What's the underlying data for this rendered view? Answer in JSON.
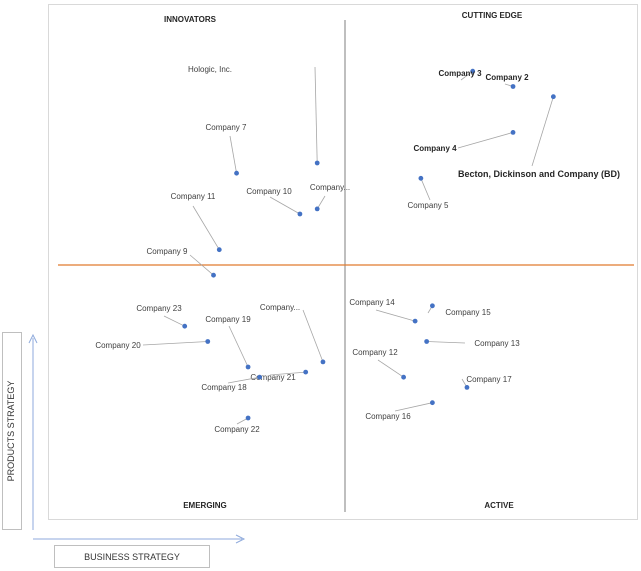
{
  "chart_data": {
    "type": "scatter",
    "quadrants": {
      "top_left": "INNOVATORS",
      "top_right": "CUTTING EDGE",
      "bottom_left": "EMERGING",
      "bottom_right": "ACTIVE"
    },
    "xlabel": "BUSINESS STRATEGY",
    "ylabel": "PRODUCTS STRATEGY",
    "xlim": [
      0,
      10
    ],
    "ylim": [
      0,
      10
    ],
    "grid": false,
    "divider_color": "#e07a2f",
    "point_color": "#4472c4",
    "points": [
      {
        "label": "Hologic, Inc.",
        "x": 4.5,
        "y": 7.0
      },
      {
        "label": "Company 7",
        "x": 3.1,
        "y": 6.8
      },
      {
        "label": "Company 10",
        "x": 4.2,
        "y": 6.0
      },
      {
        "label": "Company...",
        "x": 4.5,
        "y": 6.1
      },
      {
        "label": "Company 11",
        "x": 2.8,
        "y": 5.3
      },
      {
        "label": "Company 9",
        "x": 2.7,
        "y": 4.8
      },
      {
        "label": "Company 3",
        "x": 7.2,
        "y": 8.8
      },
      {
        "label": "Company 2",
        "x": 7.9,
        "y": 8.5
      },
      {
        "label": "Becton, Dickinson and Company (BD)",
        "x": 8.6,
        "y": 8.3
      },
      {
        "label": "Company 4",
        "x": 7.9,
        "y": 7.6
      },
      {
        "label": "Company 5",
        "x": 6.3,
        "y": 6.7
      },
      {
        "label": "Company 23",
        "x": 2.2,
        "y": 3.8
      },
      {
        "label": "Company 20",
        "x": 2.6,
        "y": 3.5
      },
      {
        "label": "Company 19",
        "x": 3.3,
        "y": 3.0
      },
      {
        "label": "Company...",
        "x": 4.6,
        "y": 3.1
      },
      {
        "label": "Company 21",
        "x": 4.3,
        "y": 2.9
      },
      {
        "label": "Company 18",
        "x": 3.5,
        "y": 2.8
      },
      {
        "label": "Company 22",
        "x": 3.3,
        "y": 2.0
      },
      {
        "label": "Company 14",
        "x": 6.2,
        "y": 3.9
      },
      {
        "label": "Company 15",
        "x": 6.5,
        "y": 4.2
      },
      {
        "label": "Company 12",
        "x": 6.0,
        "y": 2.8
      },
      {
        "label": "Company 13",
        "x": 6.4,
        "y": 3.5
      },
      {
        "label": "Company 17",
        "x": 7.1,
        "y": 2.6
      },
      {
        "label": "Company 16",
        "x": 6.5,
        "y": 2.3
      }
    ]
  }
}
